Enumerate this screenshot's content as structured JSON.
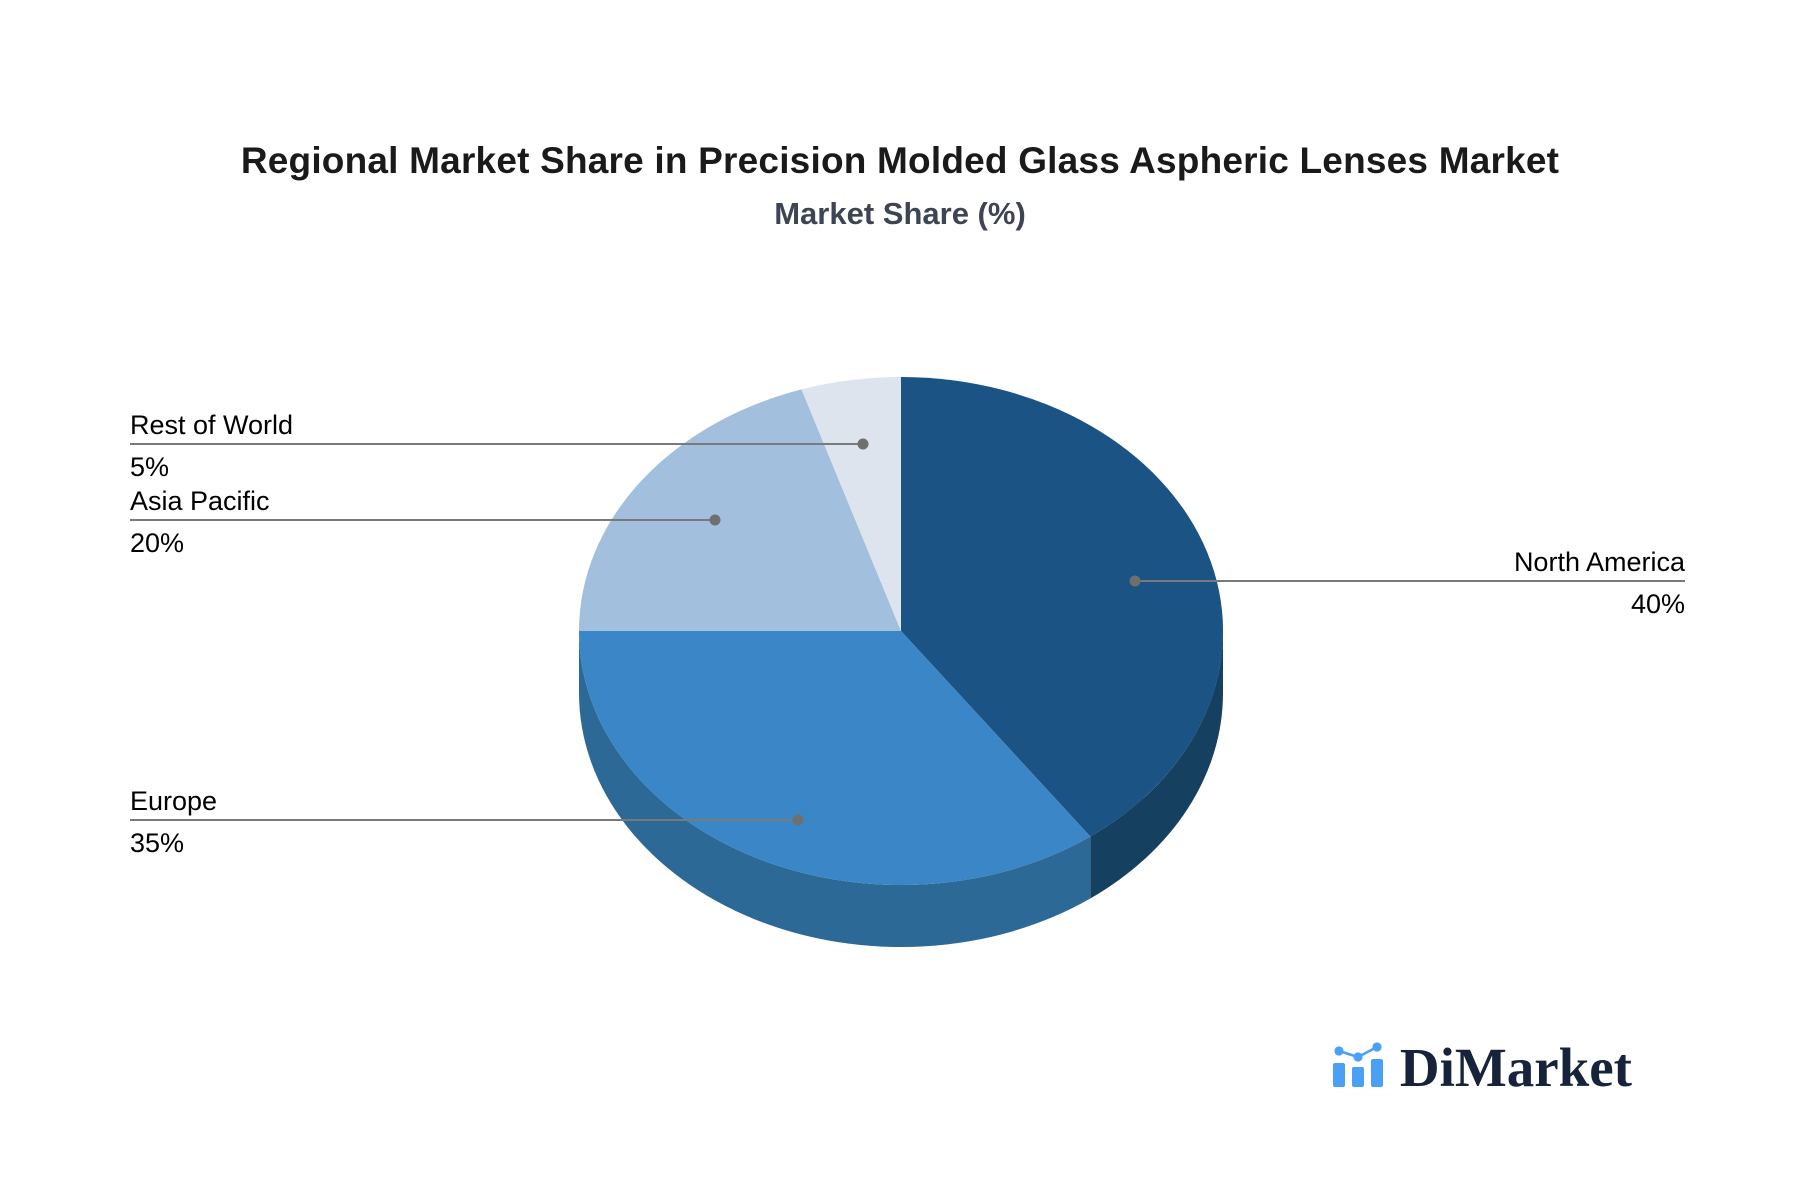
{
  "chart_data": {
    "type": "pie",
    "title": "Regional Market Share in Precision Molded Glass Aspheric Lenses Market",
    "subtitle": "Market Share (%)",
    "unit": "%",
    "categories": [
      "North America",
      "Europe",
      "Asia Pacific",
      "Rest of World"
    ],
    "values": [
      40,
      35,
      20,
      5
    ],
    "start_angle_deg": 0,
    "direction": "clockwise",
    "legend_position": "none",
    "label_style": "leader-lines",
    "effect": "3d-extruded",
    "slices": [
      {
        "label": "North America",
        "value": 40,
        "display": "40%",
        "color": "#1b5384",
        "side_color": "#15405f"
      },
      {
        "label": "Europe",
        "value": 35,
        "display": "35%",
        "color": "#3a86c7",
        "side_color": "#2d6996"
      },
      {
        "label": "Asia Pacific",
        "value": 20,
        "display": "20%",
        "color": "#a2bfdd"
      },
      {
        "label": "Rest of World",
        "value": 5,
        "display": "5%",
        "color": "#dde4ee"
      }
    ],
    "annotation_colors": {
      "label_text": "#262626",
      "percent_text": "#9c9c9c",
      "leader_line": "#7a7a7a",
      "leader_dot": "#6f6f6f"
    }
  },
  "branding": {
    "logo_text": "DiMarket",
    "logo_icon": "bar-line-chart-icon",
    "logo_text_color": "#16233a",
    "logo_accent_color": "#49a0f5"
  }
}
